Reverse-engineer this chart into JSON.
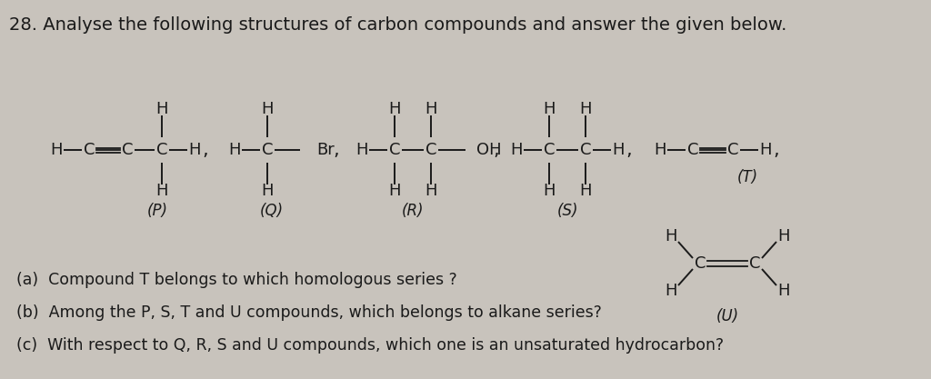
{
  "bg_color": "#c8c3bc",
  "text_color": "#1a1a1a",
  "title": "28. Analyse the following structures of carbon compounds and answer the given below.",
  "body_fontsize": 13.0,
  "label_fontsize": 12.0,
  "questions": [
    "(a)  Compound T belongs to which homologous series ?",
    "(b)  Among the P, S, T and U compounds, which belongs to alkane series?",
    "(c)  With respect to Q, R, S and U compounds, which one is an unsaturated hydrocarbon?"
  ]
}
